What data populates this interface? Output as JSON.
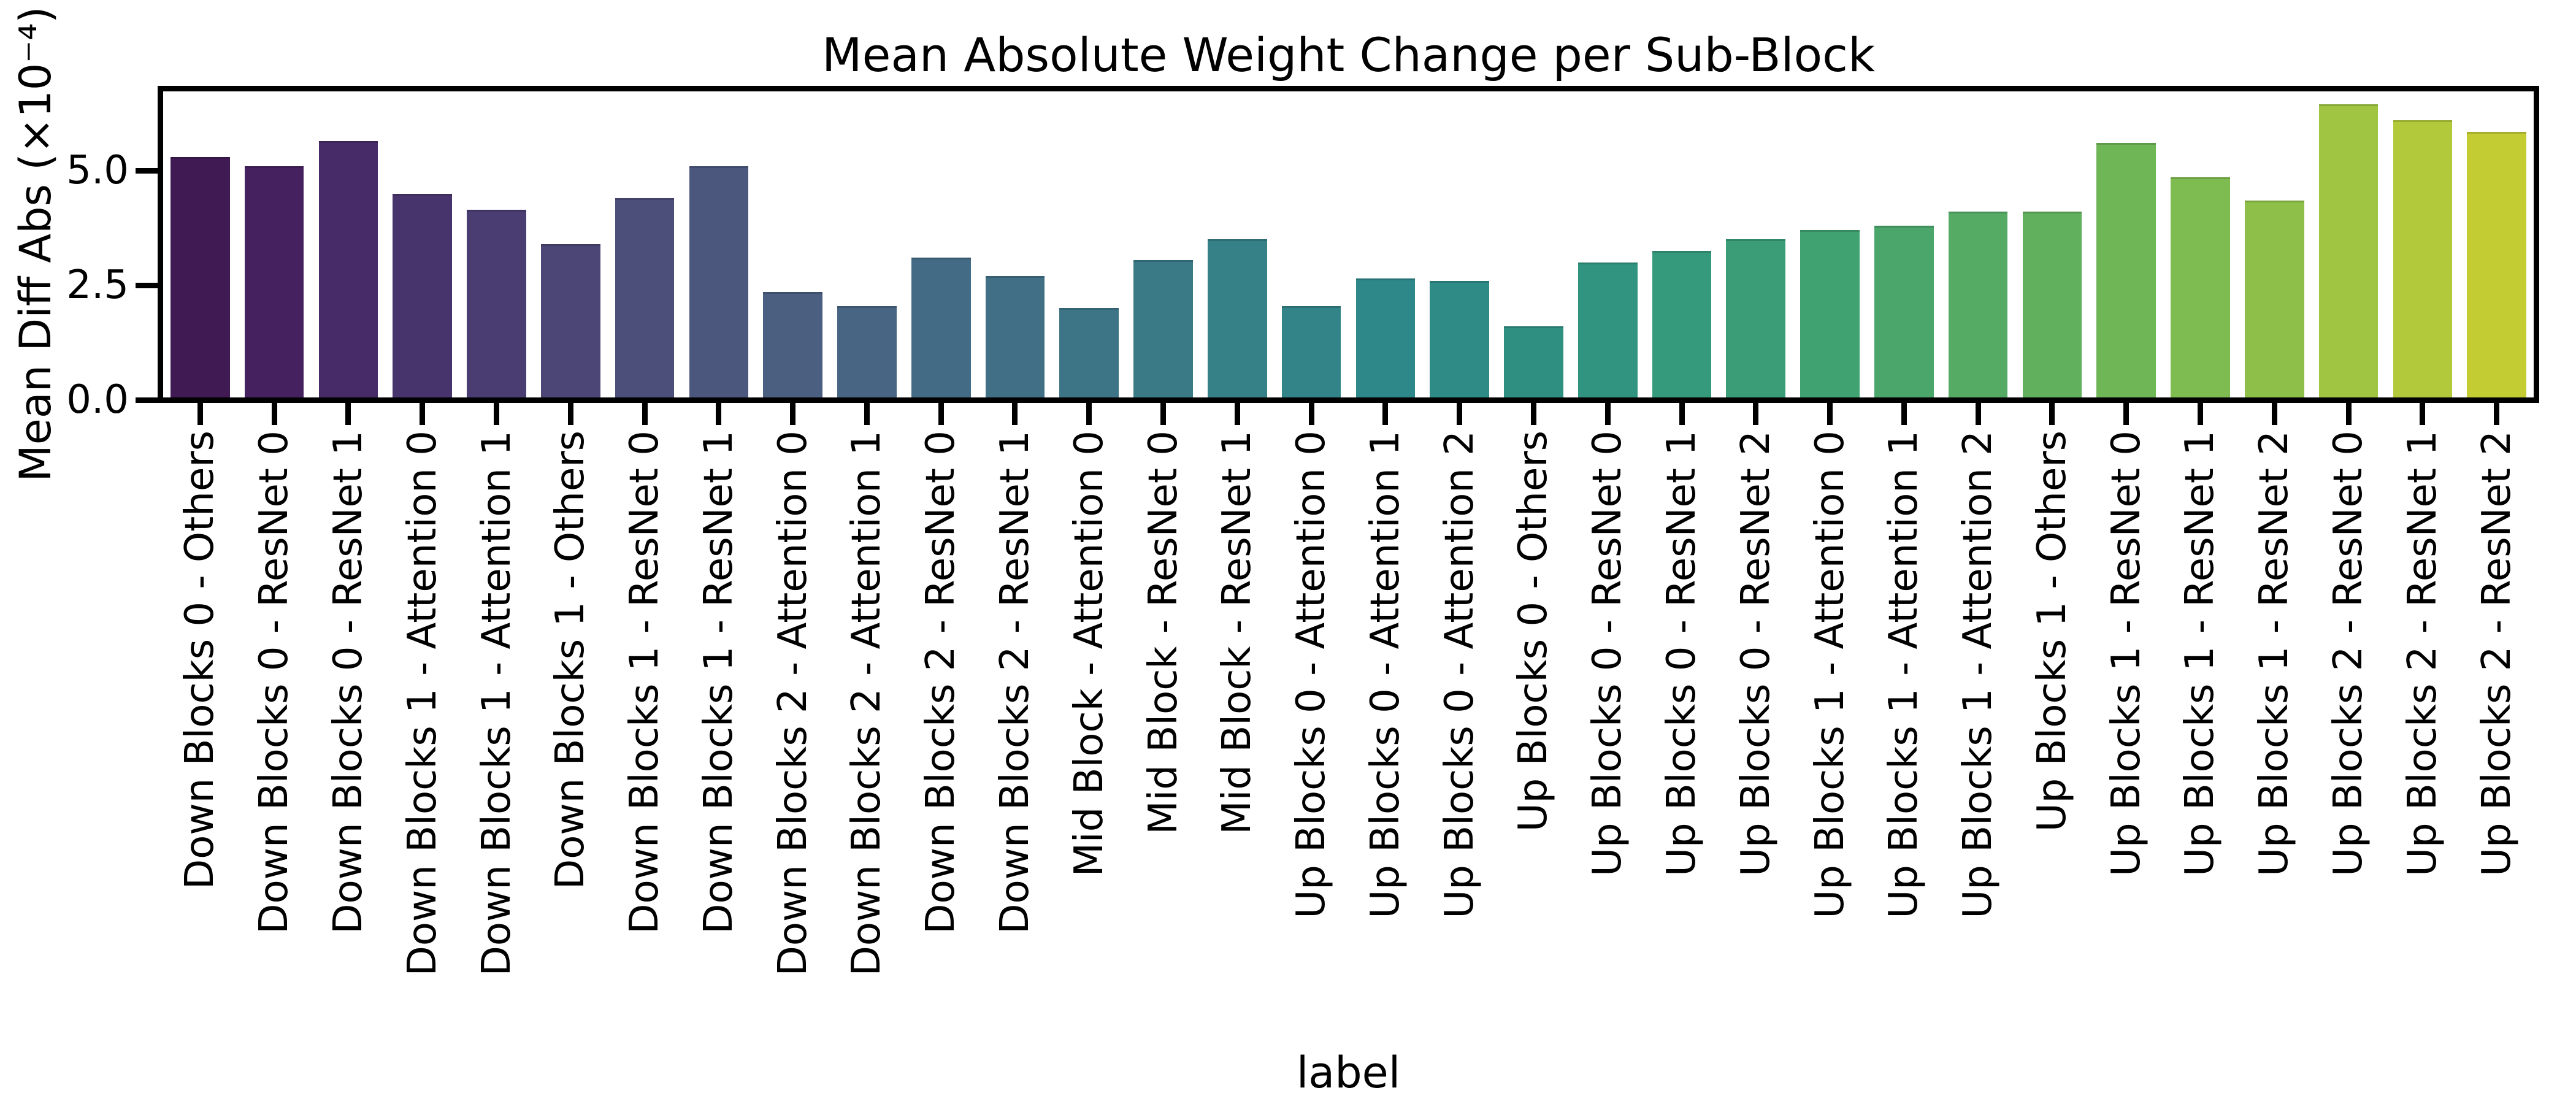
{
  "title": "Mean Absolute Weight Change per Sub-Block",
  "axes": {
    "xlabel": "label",
    "ylabel": "Mean Diff Abs (×10⁻⁴)"
  },
  "chart_data": {
    "type": "bar",
    "title": "Mean Absolute Weight Change per Sub-Block",
    "xlabel": "label",
    "ylabel": "Mean Diff Abs (×10⁻⁴)",
    "ylim": [
      0,
      6.68
    ],
    "yticks": [
      0.0,
      2.5,
      5.0
    ],
    "ytick_labels": [
      "0.0",
      "2.5",
      "5.0"
    ],
    "grid": false,
    "legend": null,
    "palette": "viridis",
    "bar_edge": "none",
    "categories": [
      "Down Blocks 0 - Others",
      "Down Blocks 0 - ResNet 0",
      "Down Blocks 0 - ResNet 1",
      "Down Blocks 1 - Attention 0",
      "Down Blocks 1 - Attention 1",
      "Down Blocks 1 - Others",
      "Down Blocks 1 - ResNet 0",
      "Down Blocks 1 - ResNet 1",
      "Down Blocks 2 - Attention 0",
      "Down Blocks 2 - Attention 1",
      "Down Blocks 2 - ResNet 0",
      "Down Blocks 2 - ResNet 1",
      "Mid Block - Attention 0",
      "Mid Block - ResNet 0",
      "Mid Block - ResNet 1",
      "Up Blocks 0 - Attention 0",
      "Up Blocks 0 - Attention 1",
      "Up Blocks 0 - Attention 2",
      "Up Blocks 0 - Others",
      "Up Blocks 0 - ResNet 0",
      "Up Blocks 0 - ResNet 1",
      "Up Blocks 0 - ResNet 2",
      "Up Blocks 1 - Attention 0",
      "Up Blocks 1 - Attention 1",
      "Up Blocks 1 - Attention 2",
      "Up Blocks 1 - Others",
      "Up Blocks 1 - ResNet 0",
      "Up Blocks 1 - ResNet 1",
      "Up Blocks 1 - ResNet 2",
      "Up Blocks 2 - ResNet 0",
      "Up Blocks 2 - ResNet 1",
      "Up Blocks 2 - ResNet 2"
    ],
    "values": [
      5.25,
      5.05,
      5.6,
      4.45,
      4.1,
      3.35,
      4.35,
      5.05,
      2.3,
      2.0,
      3.05,
      2.65,
      1.95,
      3.0,
      3.45,
      2.0,
      2.6,
      2.55,
      1.55,
      2.95,
      3.2,
      3.45,
      3.65,
      3.75,
      4.05,
      4.05,
      5.55,
      4.8,
      4.3,
      6.4,
      6.05,
      5.8
    ],
    "colors": [
      "#3f1a53",
      "#45215f",
      "#472b68",
      "#48346d",
      "#4a3d72",
      "#4b4676",
      "#4c4f7a",
      "#4c577e",
      "#4b5f81",
      "#486583",
      "#446b85",
      "#417086",
      "#3d7587",
      "#3a7a87",
      "#368087",
      "#328488",
      "#2e8789",
      "#2e8b85",
      "#2f9082",
      "#319480",
      "#35997b",
      "#3a9d77",
      "#41a271",
      "#4aa66b",
      "#55ab64",
      "#61b05d",
      "#6fb656",
      "#7ebb50",
      "#8ec049",
      "#9fc542",
      "#b1c93a",
      "#c4cc33"
    ]
  }
}
